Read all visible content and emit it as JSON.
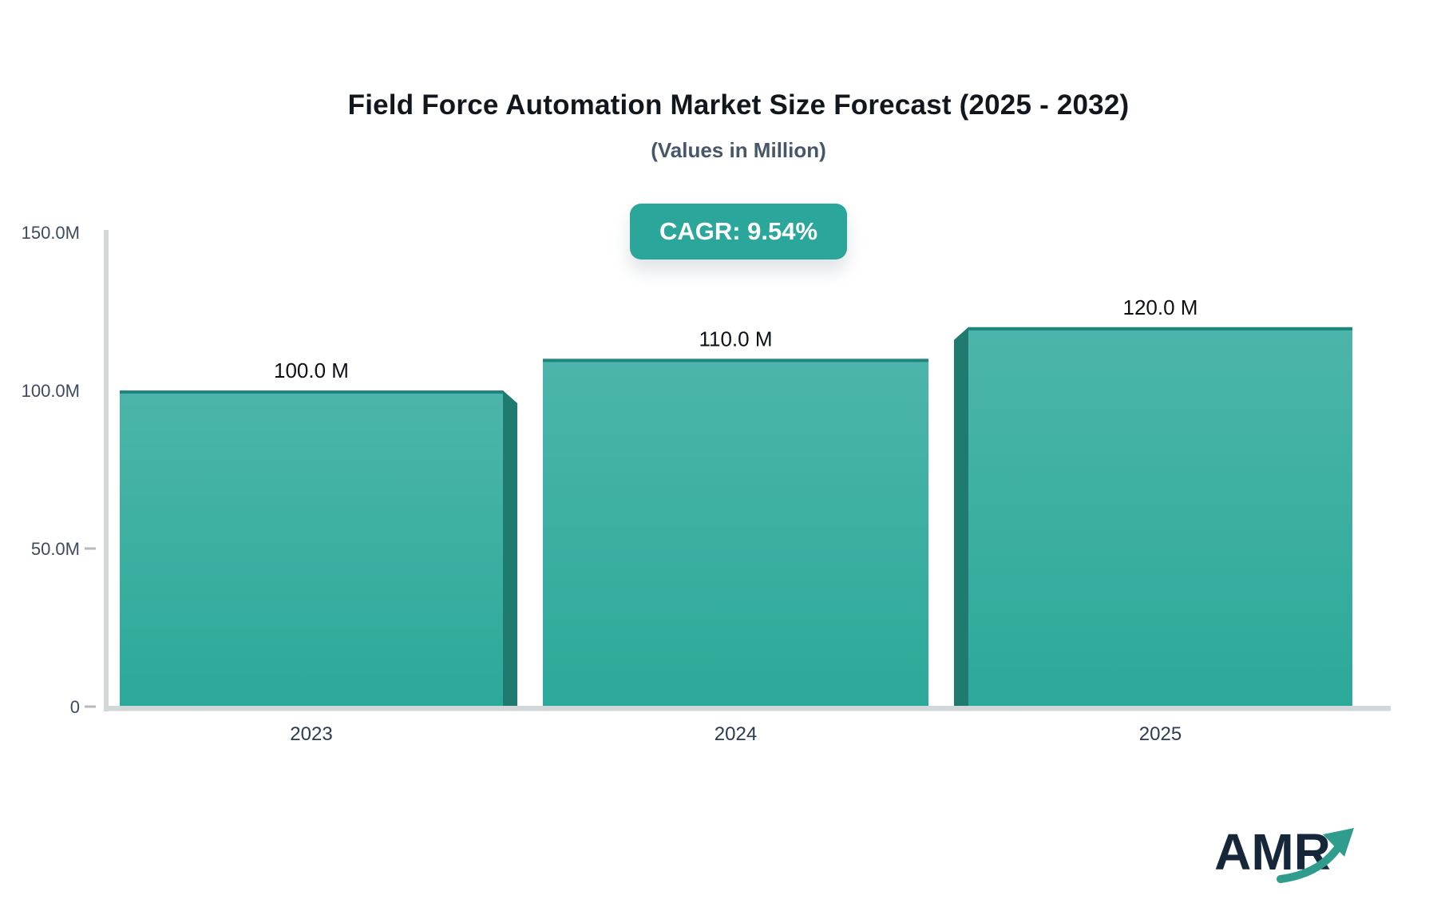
{
  "header": {
    "title": "Field Force Automation Market Size Forecast (2025 - 2032)",
    "subtitle": "(Values in Million)",
    "cagr_label": "CAGR: 9.54%"
  },
  "chart_data": {
    "type": "bar",
    "title": "Field Force Automation Market Size Forecast (2025 - 2032)",
    "subtitle": "(Values in Million)",
    "unit": "Million",
    "cagr_percent": 9.54,
    "categories": [
      "2023",
      "2024",
      "2025"
    ],
    "values": [
      100,
      110,
      120
    ],
    "value_labels": [
      "100.0 M",
      "110.0 M",
      "120.0 M"
    ],
    "xlabel": "",
    "ylabel": "",
    "ylim": [
      0,
      150
    ],
    "y_ticks": [
      {
        "value": 0,
        "label": "0",
        "dash": true
      },
      {
        "value": 50,
        "label": "50.0M",
        "dash": true
      },
      {
        "value": 100,
        "label": "100.0M",
        "dash": false
      },
      {
        "value": 150,
        "label": "150.0M",
        "dash": false
      }
    ],
    "grid": false,
    "legend": false
  },
  "logo": {
    "text": "AMR"
  },
  "colors": {
    "bar_face_top": "#4db5ab",
    "bar_face_bottom": "#2ba99a",
    "bar_side": "#1f7a6f",
    "bar_top_edge": "#1a8177",
    "axis_line": "#d2d7da",
    "tick_dash": "#b4bac1",
    "y_label": "#3d4b5e",
    "x_label": "#2c3a52",
    "value_label": "#0d1117",
    "badge_bg": "#2ba69b",
    "logo_text": "#16273a",
    "logo_arrow": "#2f9c8e"
  }
}
